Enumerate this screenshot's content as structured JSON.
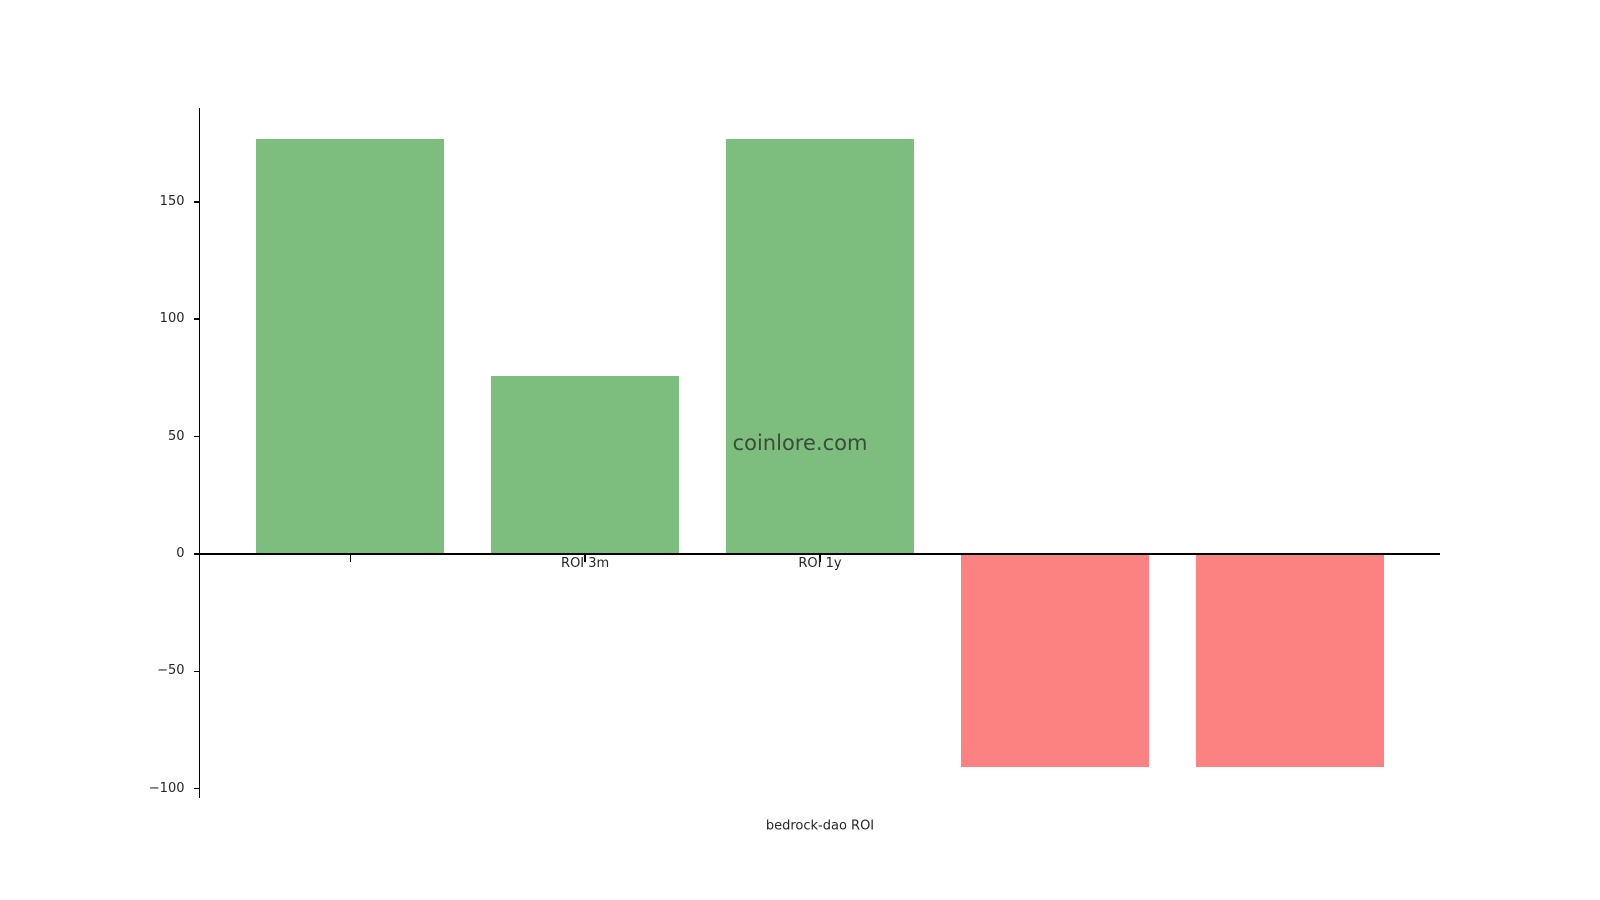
{
  "chart_data": {
    "type": "bar",
    "categories": [
      "",
      "ROI 3m",
      "ROI 1y",
      "",
      ""
    ],
    "values": [
      177,
      76,
      177,
      -91,
      -91
    ],
    "title": "",
    "xlabel": "bedrock-dao ROI",
    "ylabel": "",
    "yticks": [
      150,
      100,
      50,
      0,
      -50,
      -100
    ],
    "ylim": [
      -104,
      190
    ],
    "grid": false,
    "legend_position": "none",
    "bar_colors": {
      "positive": "#7dbd7d",
      "negative": "#fc8181"
    },
    "axis_color": "#000000",
    "text_color": "#262626",
    "watermark": "coinlore.com"
  }
}
